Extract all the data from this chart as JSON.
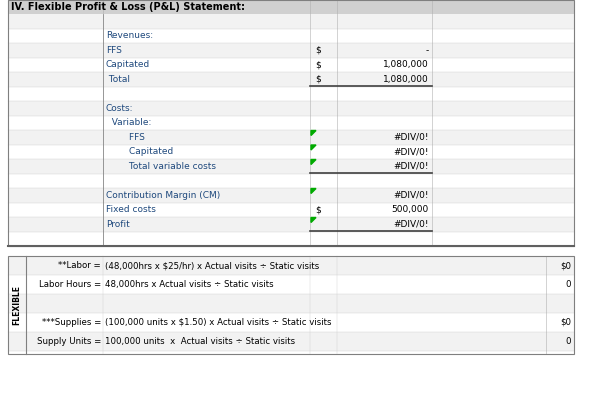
{
  "title": "IV. Flexible Profit & Loss (P&L) Statement:",
  "bg_color": "#ffffff",
  "text_color": "#000000",
  "label_color": "#1f497d",
  "section1_rows": [
    {
      "label": "",
      "dollar": "",
      "value": "",
      "underline": false,
      "green_corner": false
    },
    {
      "label": "Revenues:",
      "dollar": "",
      "value": "",
      "underline": false,
      "green_corner": false
    },
    {
      "label": "FFS",
      "dollar": "$",
      "value": "-",
      "underline": false,
      "green_corner": false
    },
    {
      "label": "Capitated",
      "dollar": "$",
      "value": "1,080,000",
      "underline": false,
      "green_corner": false
    },
    {
      "label": " Total",
      "dollar": "$",
      "value": "1,080,000",
      "underline": true,
      "green_corner": false
    },
    {
      "label": "",
      "dollar": "",
      "value": "",
      "underline": false,
      "green_corner": false
    },
    {
      "label": "Costs:",
      "dollar": "",
      "value": "",
      "underline": false,
      "green_corner": false
    },
    {
      "label": "  Variable:",
      "dollar": "",
      "value": "",
      "underline": false,
      "green_corner": false
    },
    {
      "label": "        FFS",
      "dollar": "",
      "value": "#DIV/0!",
      "underline": false,
      "green_corner": true
    },
    {
      "label": "        Capitated",
      "dollar": "",
      "value": "#DIV/0!",
      "underline": false,
      "green_corner": true
    },
    {
      "label": "        Total variable costs",
      "dollar": "",
      "value": "#DIV/0!",
      "underline": true,
      "green_corner": true
    },
    {
      "label": "",
      "dollar": "",
      "value": "",
      "underline": false,
      "green_corner": false
    },
    {
      "label": "Contribution Margin (CM)",
      "dollar": "",
      "value": "#DIV/0!",
      "underline": false,
      "green_corner": true
    },
    {
      "label": "Fixed costs",
      "dollar": "$",
      "value": "500,000",
      "underline": false,
      "green_corner": false
    },
    {
      "label": "Profit",
      "dollar": "",
      "value": "#DIV/0!",
      "underline": true,
      "green_corner": true
    },
    {
      "label": "",
      "dollar": "",
      "value": "",
      "underline": false,
      "green_corner": false
    }
  ],
  "flexible_rows": [
    {
      "label": "**Labor =",
      "label2": "(48,000hrs x $25/hr) x Actual visits ÷ Static visits",
      "value": "$0"
    },
    {
      "label": "Labor Hours =",
      "label2": "48,000hrs x Actual visits ÷ Static visits",
      "value": "0"
    },
    {
      "label": "",
      "label2": "",
      "value": ""
    },
    {
      "label": "***Supplies =",
      "label2": "(100,000 units x $1.50) x Actual visits ÷ Static visits",
      "value": "$0"
    },
    {
      "label": "Supply Units =",
      "label2": "100,000 units  x  Actual visits ÷ Static visits",
      "value": "0"
    }
  ],
  "figsize": [
    6.02,
    4.01
  ],
  "dpi": 100
}
